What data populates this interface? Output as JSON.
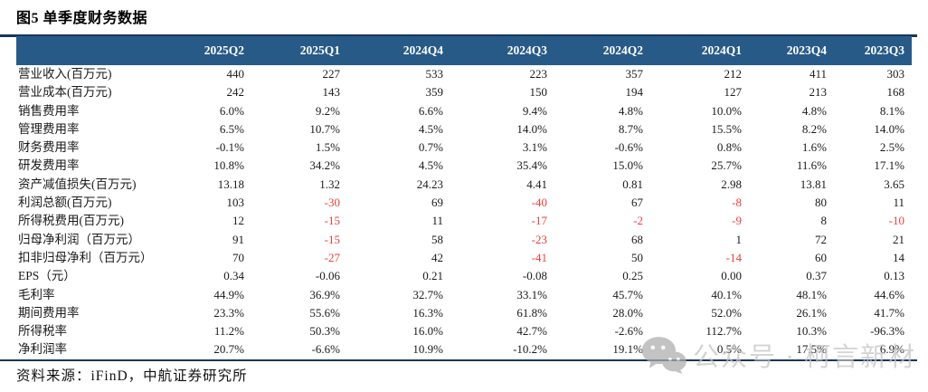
{
  "title": "图5 单季度财务数据",
  "source": "资料来源：iFinD，中航证券研究所",
  "watermark": {
    "icon": "wechat-icon",
    "text": "公众号 · 柯言新材"
  },
  "colors": {
    "header_bg": "#275a87",
    "header_text": "#ffffff",
    "border": "#17365c",
    "text": "#1a1a1a",
    "negative_red": "#e8403d",
    "watermark_gray": "#c4c4c4"
  },
  "table": {
    "columns": [
      "2025Q2",
      "2025Q1",
      "2024Q4",
      "2024Q3",
      "2024Q2",
      "2024Q1",
      "2023Q4",
      "2023Q3"
    ],
    "rows": [
      {
        "label": "营业收入(百万元)",
        "values": [
          "440",
          "227",
          "533",
          "223",
          "357",
          "212",
          "411",
          "303"
        ],
        "red_negatives": false
      },
      {
        "label": "营业成本(百万元)",
        "values": [
          "242",
          "143",
          "359",
          "150",
          "194",
          "127",
          "213",
          "168"
        ],
        "red_negatives": false
      },
      {
        "label": "销售费用率",
        "values": [
          "6.0%",
          "9.2%",
          "6.6%",
          "9.4%",
          "4.8%",
          "10.0%",
          "4.8%",
          "8.1%"
        ],
        "red_negatives": false
      },
      {
        "label": "管理费用率",
        "values": [
          "6.5%",
          "10.7%",
          "4.5%",
          "14.0%",
          "8.7%",
          "15.5%",
          "8.2%",
          "14.0%"
        ],
        "red_negatives": false
      },
      {
        "label": "财务费用率",
        "values": [
          "-0.1%",
          "1.5%",
          "0.7%",
          "3.1%",
          "-0.6%",
          "0.8%",
          "1.6%",
          "2.5%"
        ],
        "red_negatives": false
      },
      {
        "label": "研发费用率",
        "values": [
          "10.8%",
          "34.2%",
          "4.5%",
          "35.4%",
          "15.0%",
          "25.7%",
          "11.6%",
          "17.1%"
        ],
        "red_negatives": false
      },
      {
        "label": "资产减值损失(百万元)",
        "values": [
          "13.18",
          "1.32",
          "24.23",
          "4.41",
          "0.81",
          "2.98",
          "13.81",
          "3.65"
        ],
        "red_negatives": false
      },
      {
        "label": "利润总额(百万元)",
        "values": [
          "103",
          "-30",
          "69",
          "-40",
          "67",
          "-8",
          "80",
          "11"
        ],
        "red_negatives": true
      },
      {
        "label": "所得税费用(百万元)",
        "values": [
          "12",
          "-15",
          "11",
          "-17",
          "-2",
          "-9",
          "8",
          "-10"
        ],
        "red_negatives": true
      },
      {
        "label": "归母净利润（百万元）",
        "values": [
          "91",
          "-15",
          "58",
          "-23",
          "68",
          "1",
          "72",
          "21"
        ],
        "red_negatives": true
      },
      {
        "label": "扣非归母净利（百万元）",
        "values": [
          "70",
          "-27",
          "42",
          "-41",
          "50",
          "-14",
          "60",
          "14"
        ],
        "red_negatives": true
      },
      {
        "label": "EPS（元）",
        "values": [
          "0.34",
          "-0.06",
          "0.21",
          "-0.08",
          "0.25",
          "0.00",
          "0.37",
          "0.13"
        ],
        "red_negatives": false
      },
      {
        "label": "毛利率",
        "values": [
          "44.9%",
          "36.9%",
          "32.7%",
          "33.1%",
          "45.7%",
          "40.1%",
          "48.1%",
          "44.6%"
        ],
        "red_negatives": false
      },
      {
        "label": "期间费用率",
        "values": [
          "23.3%",
          "55.6%",
          "16.3%",
          "61.8%",
          "28.0%",
          "52.0%",
          "26.1%",
          "41.7%"
        ],
        "red_negatives": false
      },
      {
        "label": "所得税率",
        "values": [
          "11.2%",
          "50.3%",
          "16.0%",
          "42.7%",
          "-2.6%",
          "112.7%",
          "10.3%",
          "-96.3%"
        ],
        "red_negatives": false
      },
      {
        "label": "净利润率",
        "values": [
          "20.7%",
          "-6.6%",
          "10.9%",
          "-10.2%",
          "19.1%",
          "0.5%",
          "17.5%",
          "6.9%"
        ],
        "red_negatives": false
      }
    ]
  }
}
